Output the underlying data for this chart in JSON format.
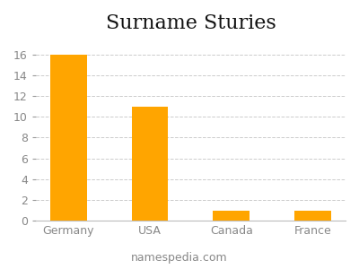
{
  "title": "Surname Sturies",
  "categories": [
    "Germany",
    "USA",
    "Canada",
    "France"
  ],
  "values": [
    16,
    11,
    1,
    1
  ],
  "bar_color": "#FFA500",
  "ylim": [
    0,
    17.5
  ],
  "yticks": [
    0,
    2,
    4,
    6,
    8,
    10,
    12,
    14,
    16
  ],
  "background_color": "#ffffff",
  "footer_text": "namespedia.com",
  "title_fontsize": 16,
  "tick_fontsize": 9,
  "footer_fontsize": 9,
  "bar_width": 0.45
}
